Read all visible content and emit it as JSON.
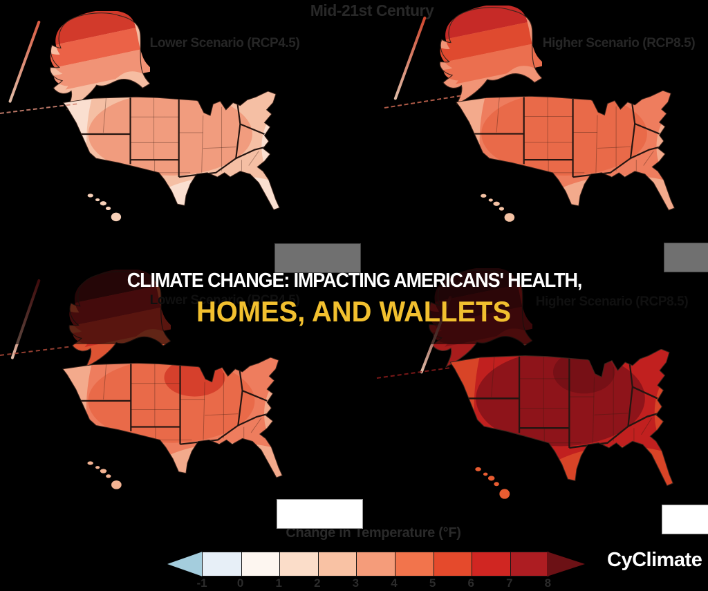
{
  "title": "Mid-21st Century",
  "banner": {
    "line1": "CLIMATE CHANGE: IMPACTING AMERICANS' HEALTH,",
    "line2": "HOMES, AND WALLETS",
    "line2_color": "#f2c02f"
  },
  "panels": [
    {
      "position": "top-left",
      "label": "Lower Scenario (RCP4.5)",
      "colors": {
        "base": "#f5bfa4",
        "pale": "#fadfd0",
        "hot": "#f19c7e",
        "hot2": "#f19c7e",
        "ak": [
          "#d23a2b",
          "#eb6247",
          "#f19376",
          "#f6bda2"
        ],
        "hawaii": "#f7d0b8",
        "pr": "#e4937a",
        "chain": "#d98a77"
      }
    },
    {
      "position": "top-right",
      "label": "Higher Scenario (RCP8.5)",
      "colors": {
        "base": "#ee7d5e",
        "pale": "#f3aa8c",
        "hot": "#e96a49",
        "hot2": "#e96a49",
        "ak": [
          "#c62a27",
          "#df4a2f",
          "#eb6f4f",
          "#f19476"
        ],
        "hawaii": "#f4c2a4",
        "pr": "#e4937a",
        "chain": "#cf6b55"
      }
    },
    {
      "position": "bottom-left",
      "label": "Lower Scenario (RCP4.5)",
      "colors": {
        "base": "#ee7d5e",
        "pale": "#f3aa8c",
        "hot": "#e96a49",
        "hot2": "#d6402c",
        "ak": [
          "#550e12",
          "#9c1a1c",
          "#ca3124",
          "#dd5433"
        ],
        "hawaii": "#f3b393",
        "pr": "#ef9873",
        "chain": "#b04a3a"
      }
    },
    {
      "position": "bottom-right",
      "label": "Higher Scenario (RCP8.5)",
      "colors": {
        "base": "#c1201f",
        "pale": "#d84427",
        "hot": "#8e141a",
        "hot2": "#771016",
        "ak": [
          "#470c10",
          "#640f13",
          "#871418",
          "#a81c1c"
        ],
        "hawaii": "#e85c31",
        "pr": "#e0502f",
        "chain": "#8f1d1d"
      }
    }
  ],
  "colorbar": {
    "title": "Change in Temperature (°F)",
    "ticks": [
      "-1",
      "0",
      "1",
      "2",
      "3",
      "4",
      "5",
      "6",
      "7",
      "8"
    ],
    "cell_colors": [
      "#e7eff7",
      "#fdf6f0",
      "#fbddc9",
      "#f9c2a4",
      "#f59c7a",
      "#f2744c",
      "#e54a2c",
      "#d02622",
      "#ad1d22"
    ],
    "left_arrow_color": "#a4cddd",
    "right_arrow_color": "#6c1115",
    "text_color": "#2b2b2b"
  },
  "logo": {
    "text": "CyClimate"
  },
  "chart_data": {
    "type": "heatmap",
    "subtype": "choropleth-us-map-panels",
    "title": "Mid-21st Century",
    "legend_title": "Change in Temperature (°F)",
    "scale_ticks": [
      -1,
      0,
      1,
      2,
      3,
      4,
      5,
      6,
      7,
      8
    ],
    "scale_colors": [
      "#e7eff7",
      "#fdf6f0",
      "#fbddc9",
      "#f9c2a4",
      "#f59c7a",
      "#f2744c",
      "#e54a2c",
      "#d02622",
      "#ad1d22"
    ],
    "panels": [
      {
        "position": "top-left",
        "scenario": "Lower Scenario (RCP4.5)",
        "approx_conus_change_F": [
          2,
          4
        ],
        "approx_alaska_change_F": [
          2,
          6
        ]
      },
      {
        "position": "top-right",
        "scenario": "Higher Scenario (RCP8.5)",
        "approx_conus_change_F": [
          3,
          5
        ],
        "approx_alaska_change_F": [
          3,
          7
        ]
      },
      {
        "position": "bottom-left",
        "scenario": "Lower Scenario (RCP4.5)",
        "approx_conus_change_F": [
          3,
          6
        ],
        "approx_alaska_change_F": [
          4,
          8
        ]
      },
      {
        "position": "bottom-right",
        "scenario": "Higher Scenario (RCP8.5)",
        "approx_conus_change_F": [
          6,
          8
        ],
        "approx_alaska_change_F": [
          7,
          8
        ]
      }
    ]
  }
}
